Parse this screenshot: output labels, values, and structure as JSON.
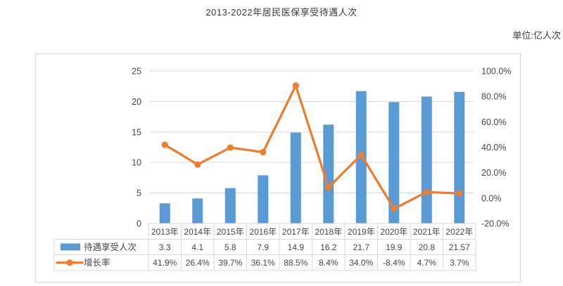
{
  "page": {
    "title": "2013-2022年居民医保享受待遇人次",
    "unit_label": "单位:亿人次"
  },
  "chart_data": {
    "type": "combo-bar-line",
    "title": "2013-2022年居民医保享受待遇人次",
    "unit": "亿人次",
    "categories": [
      "2013年",
      "2014年",
      "2015年",
      "2016年",
      "2017年",
      "2018年",
      "2019年",
      "2020年",
      "2021年",
      "2022年"
    ],
    "series": [
      {
        "name": "待遇享受人次",
        "type": "bar",
        "axis": "left",
        "color": "#5B9BD5",
        "values": [
          3.3,
          4.1,
          5.8,
          7.9,
          14.9,
          16.2,
          21.7,
          19.9,
          20.8,
          21.57
        ],
        "labels": [
          "3.3",
          "4.1",
          "5.8",
          "7.9",
          "14.9",
          "16.2",
          "21.7",
          "19.9",
          "20.8",
          "21.57"
        ]
      },
      {
        "name": "增长率",
        "type": "line",
        "axis": "right",
        "color": "#ED7D31",
        "values": [
          41.9,
          26.4,
          39.7,
          36.1,
          88.5,
          8.4,
          34.0,
          -8.4,
          4.7,
          3.7
        ],
        "labels": [
          "41.9%",
          "26.4%",
          "39.7%",
          "36.1%",
          "88.5%",
          "8.4%",
          "34.0%",
          "-8.4%",
          "4.7%",
          "3.7%"
        ]
      }
    ],
    "left_axis": {
      "min": 0,
      "max": 25,
      "step": 5,
      "tick_labels": [
        "0",
        "5",
        "10",
        "15",
        "20",
        "25"
      ]
    },
    "right_axis": {
      "min": -20,
      "max": 100,
      "step": 20,
      "tick_labels": [
        "-20.0%",
        "0.0%",
        "20.0%",
        "40.0%",
        "60.0%",
        "80.0%",
        "100.0%"
      ]
    },
    "grid": true,
    "legend_position": "data-table-left",
    "colors": {
      "grid": "#D9D9D9",
      "table_border": "#D9D9D9",
      "text": "#474747"
    }
  }
}
